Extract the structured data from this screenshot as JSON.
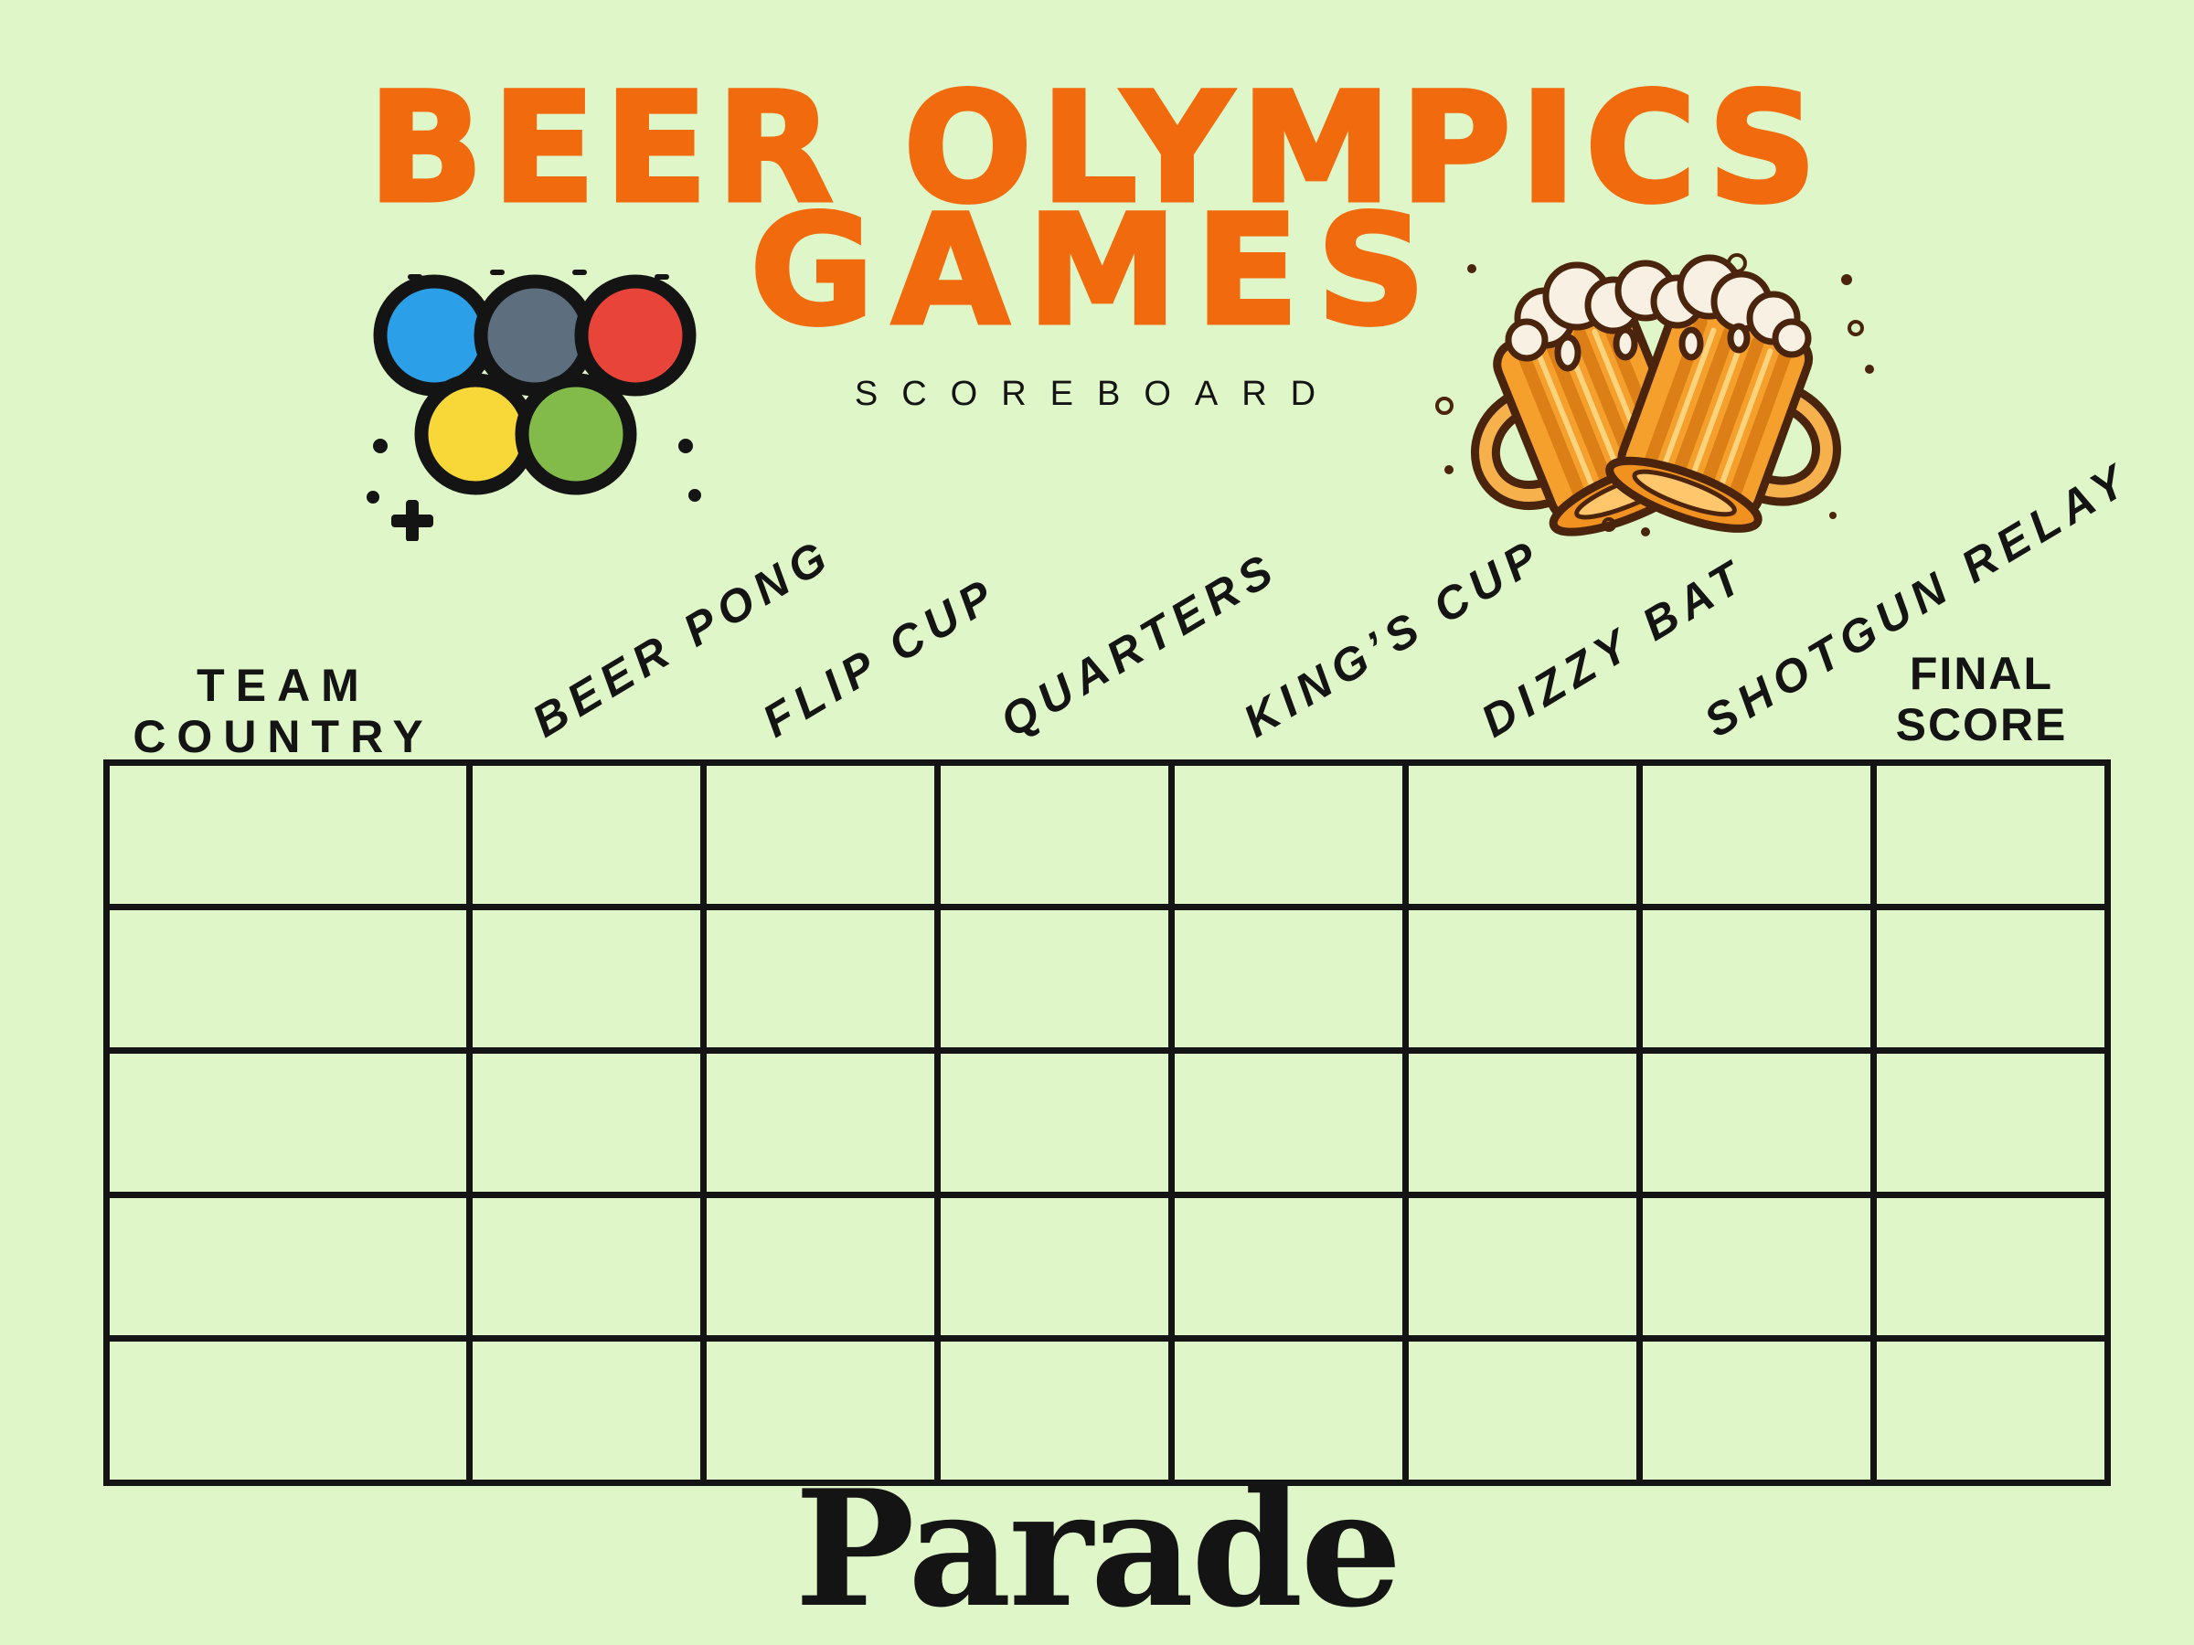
{
  "colors": {
    "background": "#dff6c8",
    "accent_orange": "#f26a0e",
    "ink_black": "#141414",
    "ring_blue": "#2b9fe8",
    "ring_gray": "#5d6e7e",
    "ring_red": "#e8443a",
    "ring_yellow": "#f7d838",
    "ring_green": "#82bb4a",
    "mug_amber": "#f5a02c",
    "mug_outline": "#4a240c",
    "foam_white": "#f8f1e3"
  },
  "header": {
    "title_line1": "BEER OLYMPICS",
    "title_line2": "GAMES",
    "subtitle": "SCOREBOARD"
  },
  "icons": {
    "left": "olympic-rings-icon",
    "right": "beer-mugs-icon"
  },
  "scoreboard": {
    "team_column_header": {
      "line1": "TEAM",
      "line2": "COUNTRY"
    },
    "game_columns": [
      "BEER PONG",
      "FLIP CUP",
      "QUARTERS",
      "KING’S CUP",
      "DIZZY BAT",
      "SHOTGUN RELAY"
    ],
    "final_column_header": {
      "line1": "FINAL",
      "line2": "SCORE"
    },
    "row_count": 5,
    "cells_empty": true
  },
  "footer": {
    "brand": "Parade"
  }
}
